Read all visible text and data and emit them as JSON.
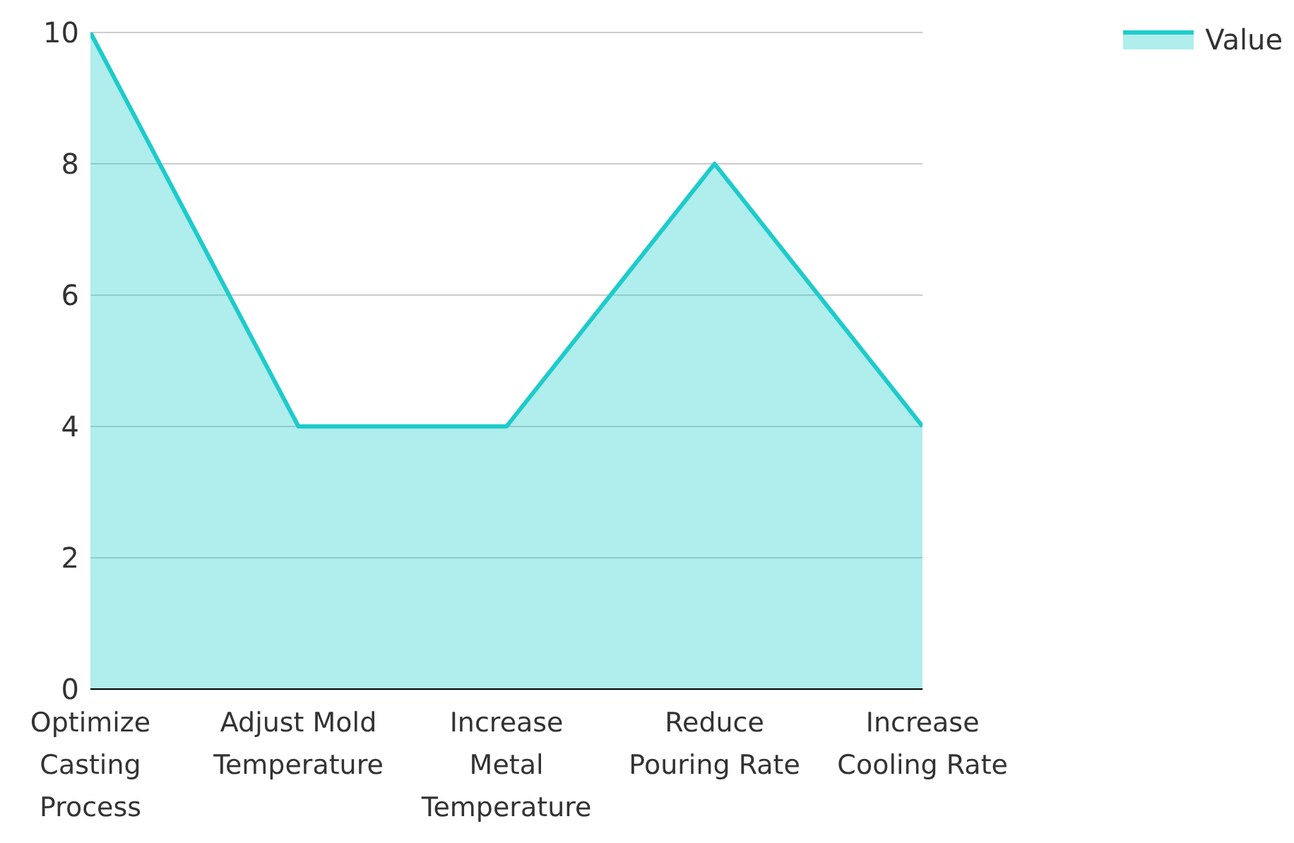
{
  "chart_data": {
    "type": "area",
    "categories": [
      "Optimize Casting Process",
      "Adjust Mold Temperature",
      "Increase Metal Temperature",
      "Reduce Pouring Rate",
      "Increase Cooling Rate"
    ],
    "series": [
      {
        "name": "Value",
        "color": "#1ecbcb",
        "values": [
          10,
          4,
          4,
          8,
          4
        ]
      }
    ],
    "ylim": [
      0,
      10
    ],
    "yticks": [
      0,
      2,
      4,
      6,
      8,
      10
    ],
    "grid": "y",
    "legend": "top right"
  }
}
